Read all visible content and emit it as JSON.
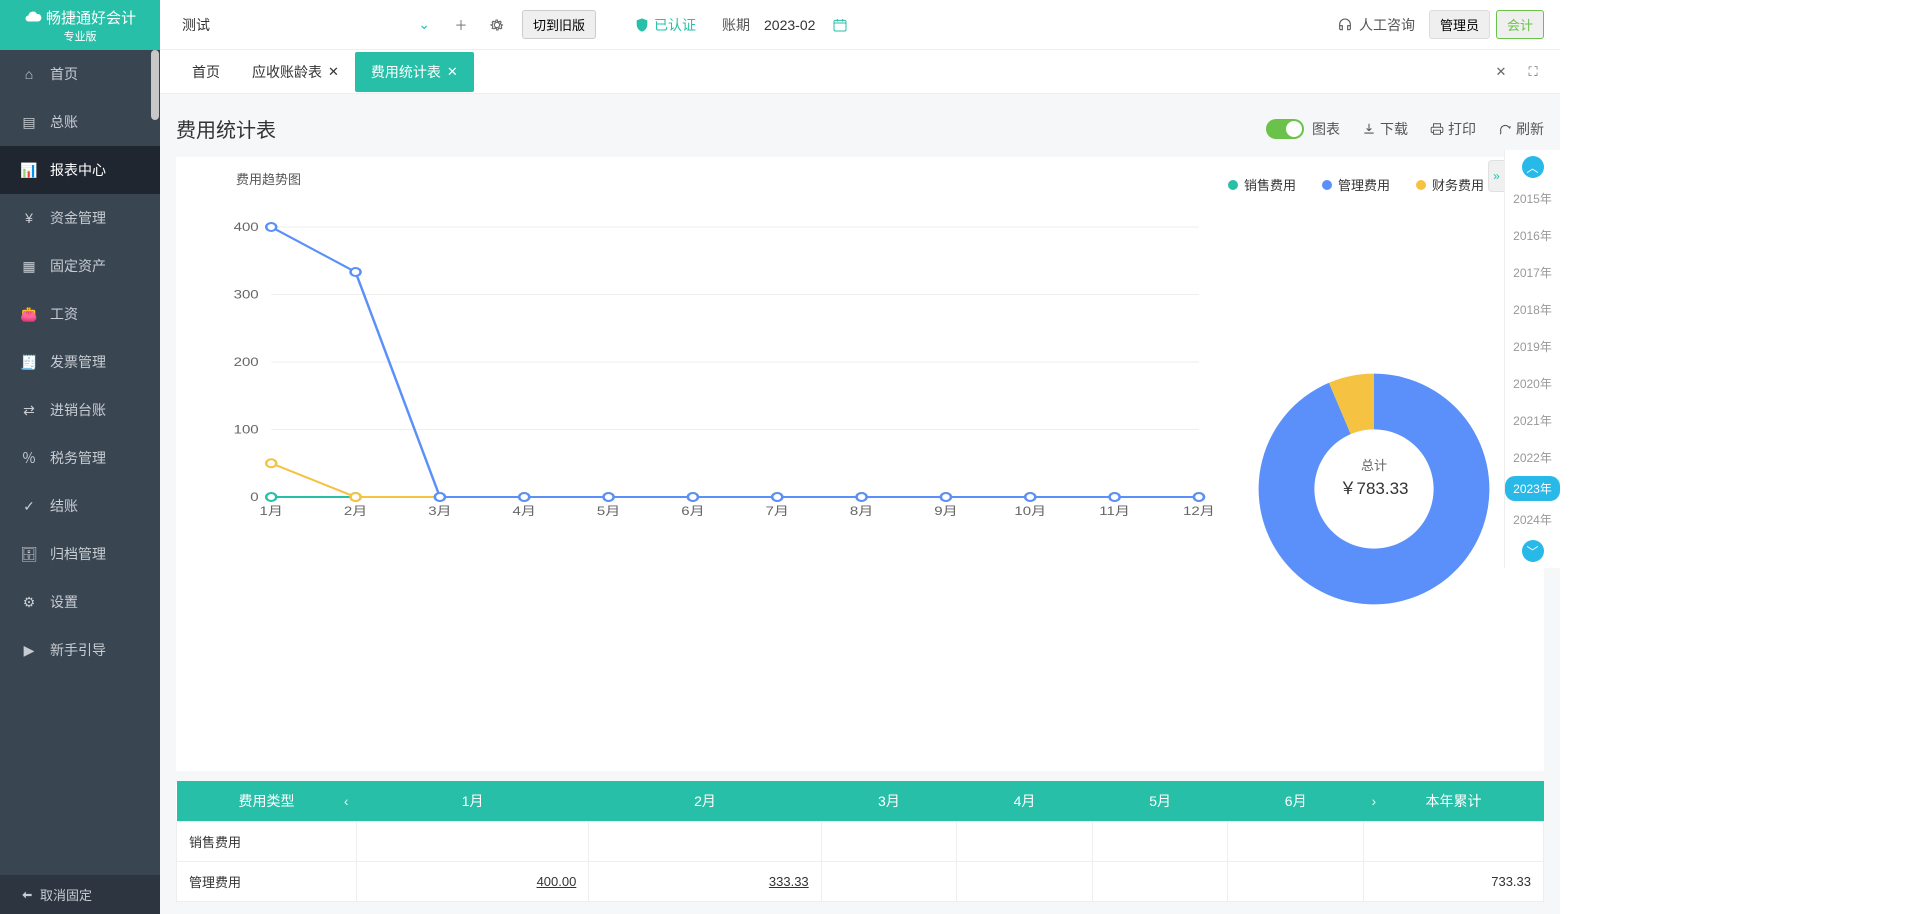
{
  "brand": {
    "name": "畅捷通好会计",
    "edition": "专业版"
  },
  "sidebar": {
    "items": [
      {
        "label": "首页"
      },
      {
        "label": "总账"
      },
      {
        "label": "报表中心"
      },
      {
        "label": "资金管理"
      },
      {
        "label": "固定资产"
      },
      {
        "label": "工资"
      },
      {
        "label": "发票管理"
      },
      {
        "label": "进销台账"
      },
      {
        "label": "税务管理"
      },
      {
        "label": "结账"
      },
      {
        "label": "归档管理"
      },
      {
        "label": "设置"
      },
      {
        "label": "新手引导"
      }
    ],
    "active_index": 2,
    "pin_label": "取消固定"
  },
  "topbar": {
    "account": "测试",
    "old_version_btn": "切到旧版",
    "verified": "已认证",
    "period_label": "账期",
    "period_value": "2023-02",
    "consult": "人工咨询",
    "roles": [
      {
        "label": "管理员"
      },
      {
        "label": "会计"
      }
    ],
    "active_role_index": 1
  },
  "tabs": {
    "items": [
      {
        "label": "首页",
        "closable": false
      },
      {
        "label": "应收账龄表",
        "closable": true
      },
      {
        "label": "费用统计表",
        "closable": true
      }
    ],
    "active_index": 2
  },
  "page": {
    "title": "费用统计表",
    "tools": {
      "chart_toggle_label": "图表",
      "download": "下载",
      "print": "打印",
      "refresh": "刷新"
    }
  },
  "line_chart": {
    "title": "费用趋势图",
    "type": "line",
    "x_labels": [
      "1月",
      "2月",
      "3月",
      "4月",
      "5月",
      "6月",
      "7月",
      "8月",
      "9月",
      "10月",
      "11月",
      "12月"
    ],
    "y_ticks": [
      0,
      100,
      200,
      300,
      400
    ],
    "ylim": [
      0,
      400
    ],
    "legend": [
      {
        "name": "销售费用",
        "color": "#27bfa8"
      },
      {
        "name": "管理费用",
        "color": "#5b8ff9"
      },
      {
        "name": "财务费用",
        "color": "#f5c242"
      }
    ],
    "series": {
      "sales": {
        "color": "#27bfa8",
        "values": [
          0,
          0,
          0,
          0,
          0,
          0,
          0,
          0,
          0,
          0,
          0,
          0
        ]
      },
      "admin": {
        "color": "#5b8ff9",
        "values": [
          400,
          333.33,
          0,
          0,
          0,
          0,
          0,
          0,
          0,
          0,
          0,
          0
        ]
      },
      "finance": {
        "color": "#f5c242",
        "values": [
          50,
          0,
          0,
          0,
          0,
          0,
          0,
          0,
          0,
          0,
          0,
          0
        ]
      }
    },
    "grid_color": "#eeeeee",
    "axis_font_size": 12,
    "marker_radius": 4
  },
  "donut": {
    "type": "donut",
    "center_label": "总计",
    "center_value": "￥783.33",
    "inner_radius": 62,
    "outer_radius": 120,
    "slices": [
      {
        "name": "管理费用",
        "value": 733.33,
        "color": "#5b8ff9"
      },
      {
        "name": "财务费用",
        "value": 50,
        "color": "#f5c242"
      }
    ]
  },
  "year_rail": {
    "years": [
      "2015年",
      "2016年",
      "2017年",
      "2018年",
      "2019年",
      "2020年",
      "2021年",
      "2022年",
      "2023年",
      "2024年"
    ],
    "active_index": 8
  },
  "table": {
    "type_header": "费用类型",
    "month_headers": [
      "1月",
      "2月",
      "3月",
      "4月",
      "5月",
      "6月"
    ],
    "total_header": "本年累计",
    "rows": [
      {
        "label": "销售费用",
        "cells": [
          "",
          "",
          "",
          "",
          "",
          ""
        ],
        "total": ""
      },
      {
        "label": "管理费用",
        "cells": [
          "400.00",
          "333.33",
          "",
          "",
          "",
          ""
        ],
        "total": "733.33",
        "underline": [
          0,
          1
        ]
      }
    ]
  }
}
